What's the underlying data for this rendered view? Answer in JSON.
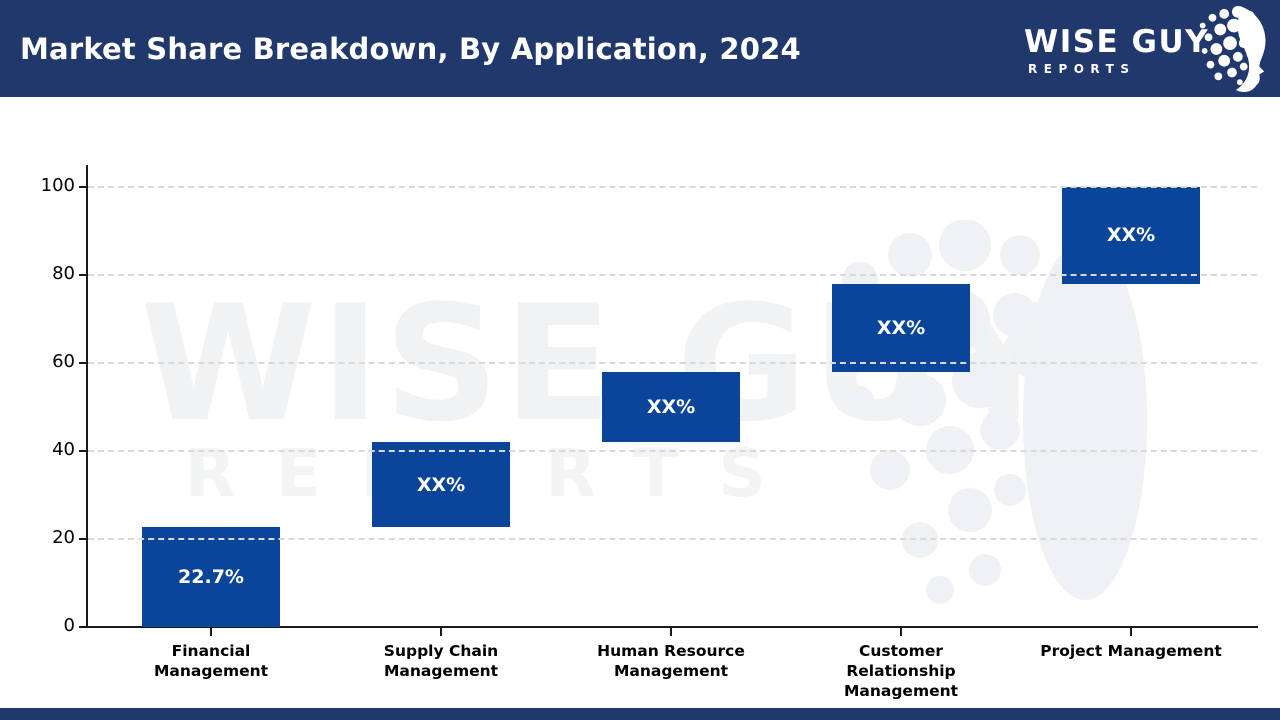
{
  "header": {
    "title": "Market Share Breakdown, By Application, 2024",
    "logo_line1": "WISE GUY",
    "logo_line2": "REPORTS"
  },
  "watermark": {
    "line1": "WISE GUY",
    "line2": "REPORTS"
  },
  "chart_data": {
    "type": "bar",
    "subtype": "waterfall",
    "title": "Market Share Breakdown, By Application, 2024",
    "categories": [
      "Financial\nManagement",
      "Supply Chain\nManagement",
      "Human Resource\nManagement",
      "Customer\nRelationship\nManagement",
      "Project Management"
    ],
    "segments": [
      {
        "category": "Financial Management",
        "start": 0,
        "end": 22.7,
        "label": "22.7%"
      },
      {
        "category": "Supply Chain Management",
        "start": 22.7,
        "end": 42,
        "label": "XX%"
      },
      {
        "category": "Human Resource Management",
        "start": 42,
        "end": 58,
        "label": "XX%"
      },
      {
        "category": "Customer Relationship Management",
        "start": 58,
        "end": 78,
        "label": "XX%"
      },
      {
        "category": "Project Management",
        "start": 78,
        "end": 100,
        "label": "XX%"
      }
    ],
    "y_ticks": [
      0,
      20,
      40,
      60,
      80,
      100
    ],
    "ylim": [
      0,
      105
    ],
    "grid": "horizontal-dashed",
    "legend": false,
    "colors": {
      "bar": "#0a4599",
      "bar_label": "#ffffff",
      "grid": "#d9d9d9",
      "axis": "#1a1a1a",
      "header_bg": "#20386b",
      "footer_bg": "#20386b"
    }
  }
}
